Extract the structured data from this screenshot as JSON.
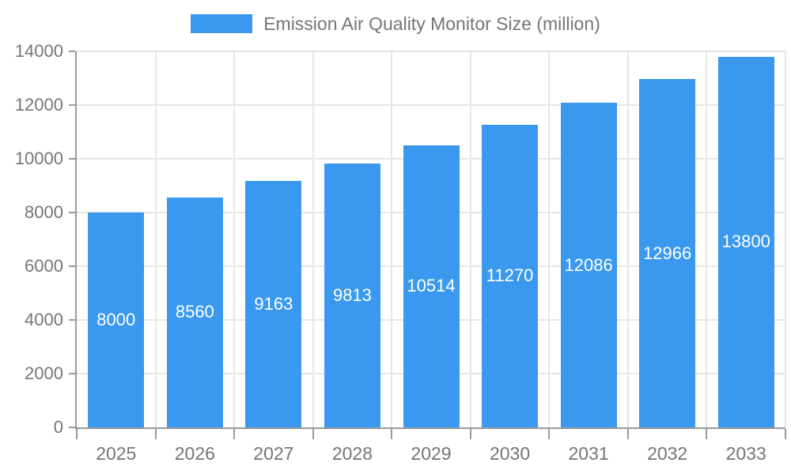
{
  "legend": {
    "label": "Emission Air Quality Monitor Size (million)"
  },
  "chart_data": {
    "type": "bar",
    "title": "Emission Air Quality Monitor Size (million)",
    "categories": [
      "2025",
      "2026",
      "2027",
      "2028",
      "2029",
      "2030",
      "2031",
      "2032",
      "2033"
    ],
    "values": [
      8000,
      8560,
      9163,
      9813,
      10514,
      11270,
      12086,
      12966,
      13800
    ],
    "xlabel": "",
    "ylabel": "",
    "ylim": [
      0,
      14000
    ],
    "ytick_step": 2000,
    "grid": true,
    "legend_position": "top-center",
    "value_labels": "inside-center",
    "colors": {
      "bar": "#3A99EE",
      "axis_line": "#999999",
      "gridline": "#E6E6E6",
      "axis_text": "#757575",
      "value_text": "#FFFFFF"
    }
  }
}
